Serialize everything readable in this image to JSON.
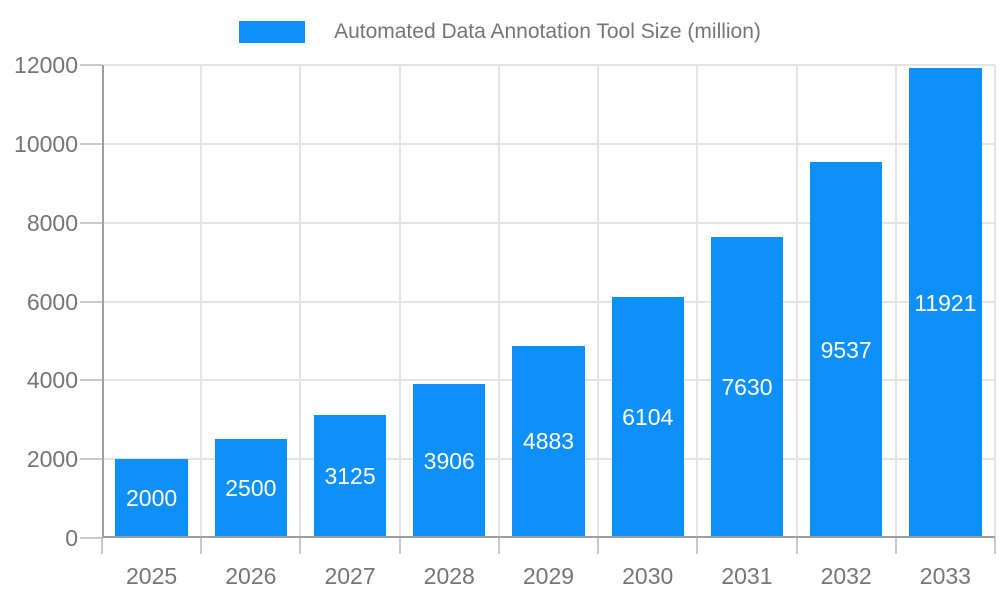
{
  "chart_data": {
    "type": "bar",
    "title": "Automated Data Annotation Tool Size (million)",
    "legend_entries": [
      "Automated Data Annotation Tool Size (million)"
    ],
    "legend_position": "top-center",
    "categories": [
      "2025",
      "2026",
      "2027",
      "2028",
      "2029",
      "2030",
      "2031",
      "2032",
      "2033"
    ],
    "values": [
      2000,
      2500,
      3125,
      3906,
      4883,
      6104,
      7630,
      9537,
      11921
    ],
    "value_labels_visible": true,
    "xlabel": "",
    "ylabel": "",
    "ylim": [
      0,
      12000
    ],
    "yticks": [
      0,
      2000,
      4000,
      6000,
      8000,
      10000,
      12000
    ],
    "grid": {
      "horizontal": true,
      "vertical": true
    },
    "colors": {
      "bar": "#0d90f9",
      "value_label": "#ffffff",
      "gridline": "#e4e4e4",
      "axis_line": "#9e9e9e",
      "tick": "#c9c9c9",
      "tick_label": "#757575",
      "legend_text": "#757575",
      "background": "#ffffff"
    }
  }
}
